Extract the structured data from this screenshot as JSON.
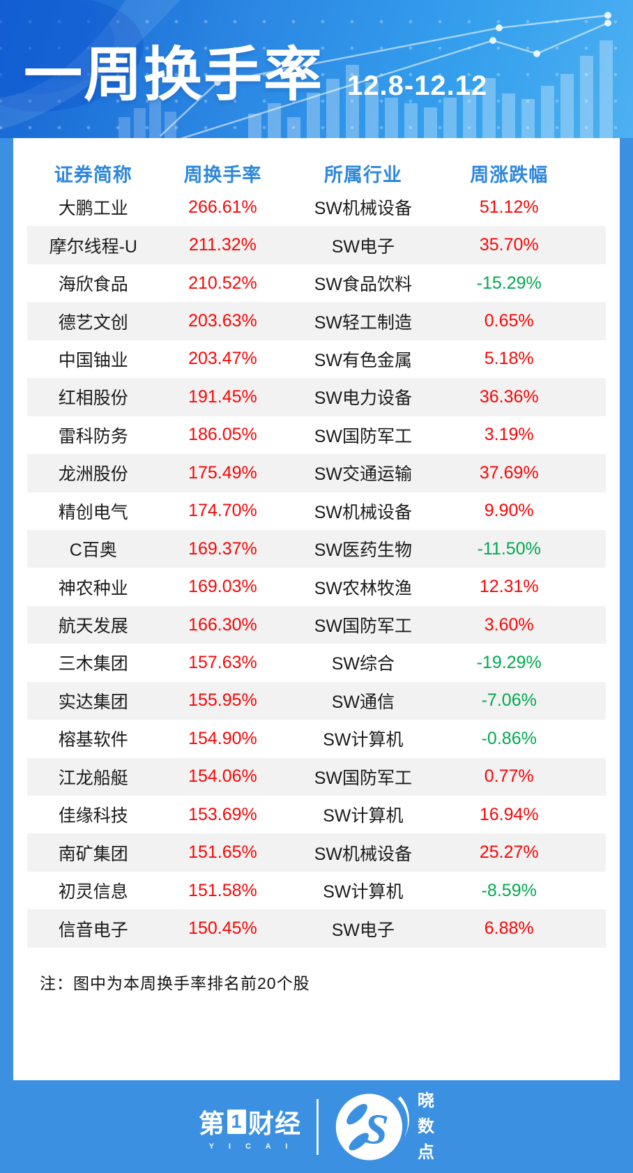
{
  "banner": {
    "title": "一周换手率",
    "date_range": "12.8-12.12"
  },
  "chart_data": {
    "type": "table",
    "title": "一周换手率 12.8-12.12",
    "headers": [
      "证券简称",
      "周换手率",
      "所属行业",
      "周涨跌幅"
    ],
    "rows": [
      {
        "name": "大鹏工业",
        "turnover": "266.61%",
        "industry": "SW机械设备",
        "change": "51.12%"
      },
      {
        "name": "摩尔线程-U",
        "turnover": "211.32%",
        "industry": "SW电子",
        "change": "35.70%"
      },
      {
        "name": "海欣食品",
        "turnover": "210.52%",
        "industry": "SW食品饮料",
        "change": "-15.29%"
      },
      {
        "name": "德艺文创",
        "turnover": "203.63%",
        "industry": "SW轻工制造",
        "change": "0.65%"
      },
      {
        "name": "中国铀业",
        "turnover": "203.47%",
        "industry": "SW有色金属",
        "change": "5.18%"
      },
      {
        "name": "红相股份",
        "turnover": "191.45%",
        "industry": "SW电力设备",
        "change": "36.36%"
      },
      {
        "name": "雷科防务",
        "turnover": "186.05%",
        "industry": "SW国防军工",
        "change": "3.19%"
      },
      {
        "name": "龙洲股份",
        "turnover": "175.49%",
        "industry": "SW交通运输",
        "change": "37.69%"
      },
      {
        "name": "精创电气",
        "turnover": "174.70%",
        "industry": "SW机械设备",
        "change": "9.90%"
      },
      {
        "name": "C百奥",
        "turnover": "169.37%",
        "industry": "SW医药生物",
        "change": "-11.50%"
      },
      {
        "name": "神农种业",
        "turnover": "169.03%",
        "industry": "SW农林牧渔",
        "change": "12.31%"
      },
      {
        "name": "航天发展",
        "turnover": "166.30%",
        "industry": "SW国防军工",
        "change": "3.60%"
      },
      {
        "name": "三木集团",
        "turnover": "157.63%",
        "industry": "SW综合",
        "change": "-19.29%"
      },
      {
        "name": "实达集团",
        "turnover": "155.95%",
        "industry": "SW通信",
        "change": "-7.06%"
      },
      {
        "name": "榕基软件",
        "turnover": "154.90%",
        "industry": "SW计算机",
        "change": "-0.86%"
      },
      {
        "name": "江龙船艇",
        "turnover": "154.06%",
        "industry": "SW国防军工",
        "change": "0.77%"
      },
      {
        "name": "佳缘科技",
        "turnover": "153.69%",
        "industry": "SW计算机",
        "change": "16.94%"
      },
      {
        "name": "南矿集团",
        "turnover": "151.65%",
        "industry": "SW机械设备",
        "change": "25.27%"
      },
      {
        "name": "初灵信息",
        "turnover": "151.58%",
        "industry": "SW计算机",
        "change": "-8.59%"
      },
      {
        "name": "信音电子",
        "turnover": "150.45%",
        "industry": "SW电子",
        "change": "6.88%"
      }
    ],
    "note": "注：图中为本周换手率排名前20个股",
    "legend_position": "none",
    "grid": "off"
  },
  "footer": {
    "brand": "第",
    "brand_one": "1",
    "brand_rest": "财经",
    "brand_sub": "Y I C A I",
    "logo_letter": "S",
    "product_chars": [
      "晓",
      "数",
      "点"
    ]
  },
  "colors": {
    "page_blue": "#3b90e1",
    "accent_blue": "#2e87dc",
    "positive_red": "#fa0505",
    "negative_green": "#00a94f",
    "row_alt_bg": "#f2f2f2",
    "banner_gradient_start": "#1565d2",
    "banner_gradient_end": "#4db0f2"
  }
}
